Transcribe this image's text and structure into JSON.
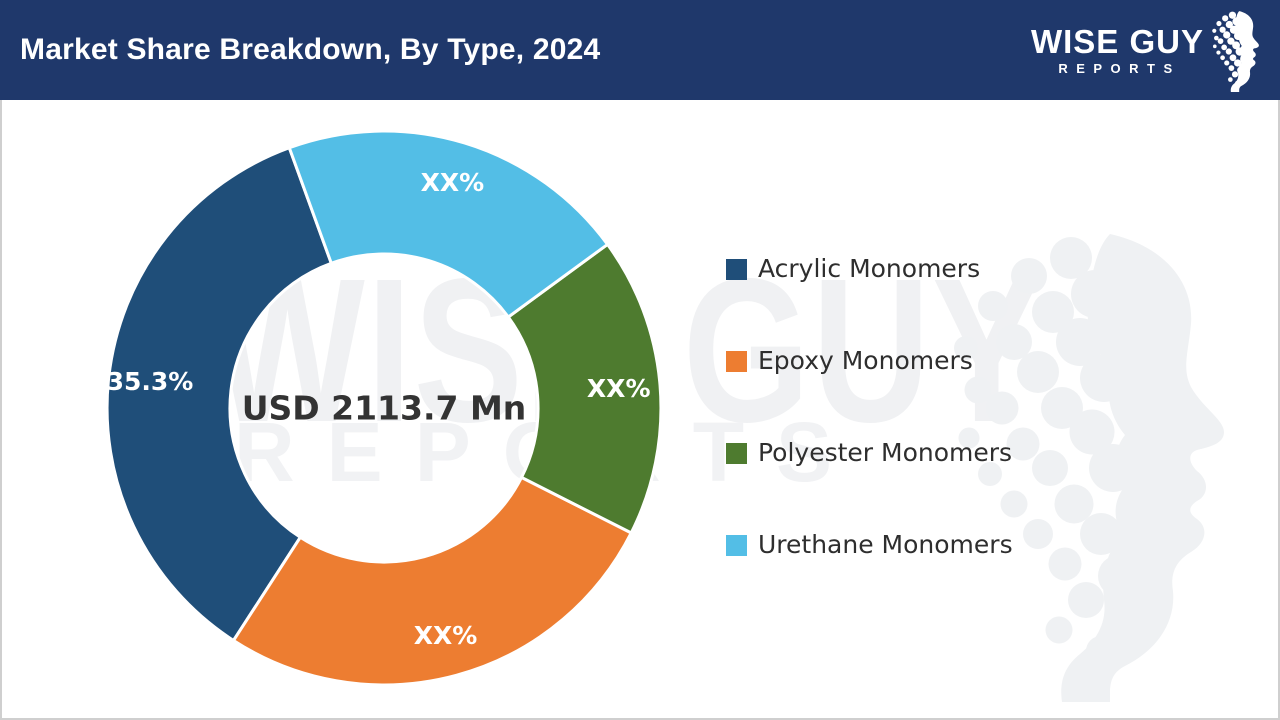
{
  "header": {
    "title": "Market Share Breakdown, By Type, 2024",
    "bg_color": "#1F386B",
    "logo": {
      "name": "WISE GUY",
      "sub": "REPORTS"
    }
  },
  "watermark": {
    "name": "WISE GUY",
    "sub": "REPORTS"
  },
  "chart_data": {
    "type": "pie",
    "subtype": "donut",
    "title": "Market Share Breakdown, By Type, 2024",
    "center_label": "USD 2113.7 Mn",
    "categories": [
      "Acrylic Monomers",
      "Epoxy Monomers",
      "Polyester Monomers",
      "Urethane Monomers"
    ],
    "values": [
      35.3,
      26.7,
      17.5,
      20.5
    ],
    "slice_labels": [
      "35.3%",
      "XX%",
      "XX%",
      "XX%"
    ],
    "colors": [
      "#1F4E79",
      "#ED7D31",
      "#4E7B2F",
      "#53BEE6"
    ],
    "start_angle_deg": 110,
    "direction": "counterclockwise",
    "donut_hole_ratio": 0.556,
    "label_radius_ratio": 0.85,
    "slice_edge_color": "#ffffff",
    "legend_position": "right"
  },
  "legend": {
    "items": [
      {
        "label": "Acrylic Monomers",
        "color": "#1F4E79"
      },
      {
        "label": "Epoxy Monomers",
        "color": "#ED7D31"
      },
      {
        "label": "Polyester Monomers",
        "color": "#4E7B2F"
      },
      {
        "label": "Urethane Monomers",
        "color": "#53BEE6"
      }
    ]
  }
}
